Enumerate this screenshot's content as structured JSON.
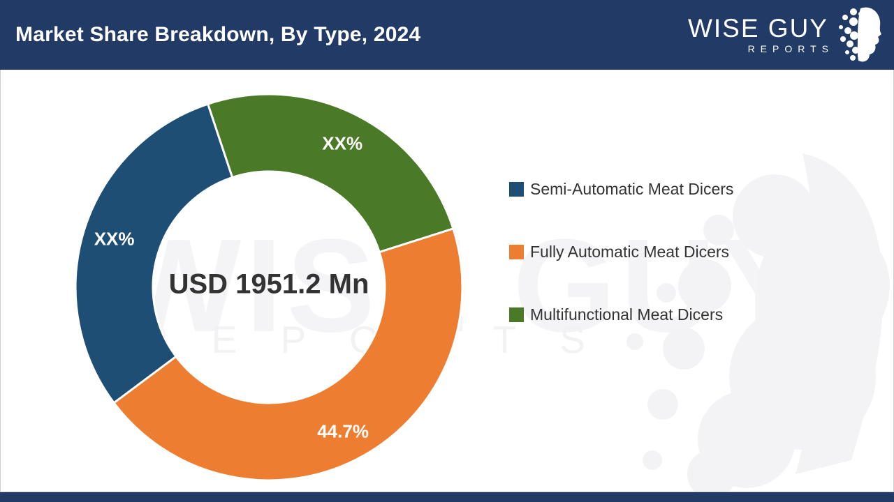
{
  "header": {
    "title": "Market Share Breakdown, By Type, 2024",
    "bg_color": "#223a66",
    "logo": {
      "wordmark": "WISE GUY",
      "subtitle": "REPORTS"
    }
  },
  "watermark": {
    "wordmark": "WISE GUY",
    "subtitle": "REPORTS"
  },
  "chart_data": {
    "type": "pie",
    "subtype": "donut",
    "title": "Market Share Breakdown, By Type, 2024",
    "center_label": "USD 1951.2 Mn",
    "start_angle_deg": -18.4,
    "inner_radius_ratio": 0.6,
    "legend_position": "right",
    "segments_clockwise": [
      {
        "name": "Multifunctional Meat Dicers",
        "value_pct": 25.2,
        "label": "XX%",
        "color": "#4a7a28"
      },
      {
        "name": "Fully Automatic Meat Dicers",
        "value_pct": 44.7,
        "label": "44.7%",
        "color": "#ed7d31"
      },
      {
        "name": "Semi-Automatic Meat Dicers",
        "value_pct": 30.1,
        "label": "XX%",
        "color": "#1f4e74"
      }
    ],
    "legend": {
      "items": [
        {
          "label": "Semi-Automatic Meat Dicers",
          "color": "#1f4e74"
        },
        {
          "label": "Fully Automatic Meat Dicers",
          "color": "#ed7d31"
        },
        {
          "label": "Multifunctional Meat Dicers",
          "color": "#4a7a28"
        }
      ]
    }
  }
}
